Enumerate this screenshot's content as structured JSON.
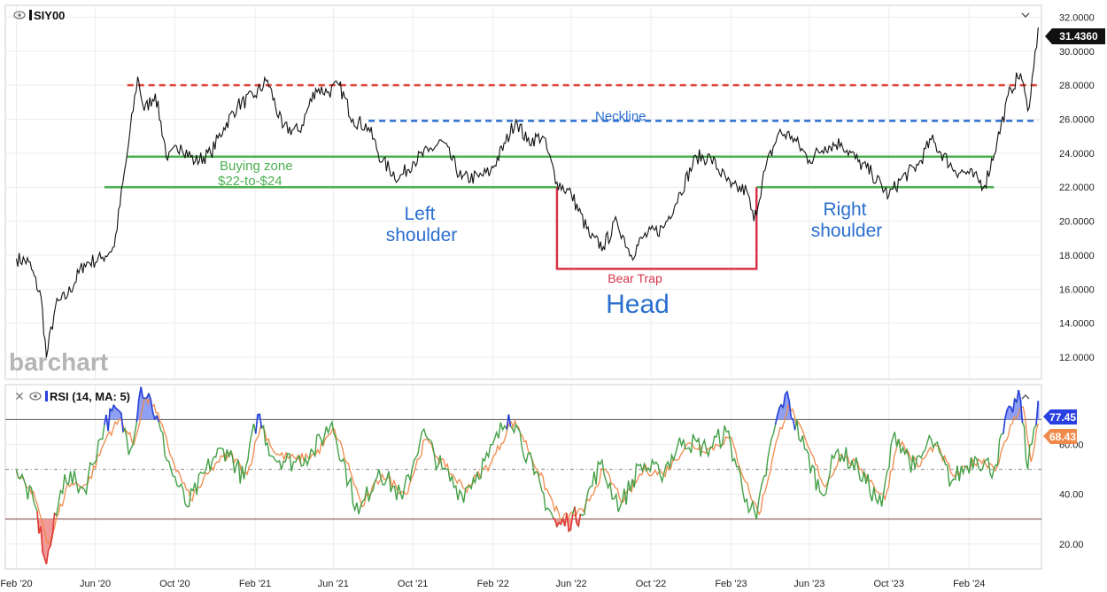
{
  "header": {
    "symbol": "SIY00",
    "rsi_label": "RSI (14, MA: 5)",
    "watermark": "barchart"
  },
  "badges": {
    "last_price": "31.4360",
    "rsi_value": "77.45",
    "rsi_ma_value": "68.43"
  },
  "colors": {
    "price_line": "#111111",
    "resistance": "#e0453a",
    "neckline": "#2b6fcf",
    "support": "#4caf50",
    "bear_trap": "#d6334a",
    "rsi_line": "#43a047",
    "rsi_ma": "#f08a4b",
    "rsi_over": "#2a3fe0",
    "rsi_under": "#e53935",
    "last_price_badge": "#111111",
    "rsi_badge": "#2a3fe0",
    "rsi_ma_badge": "#f08a4b"
  },
  "annotations": {
    "neckline": "Neckline",
    "buying_zone_1": "Buying zone",
    "buying_zone_2": "$22-to-$24",
    "left_shoulder_1": "Left",
    "left_shoulder_2": "shoulder",
    "right_shoulder_1": "Right",
    "right_shoulder_2": "shoulder",
    "bear_trap": "Bear Trap",
    "head": "Head"
  },
  "chart_data": [
    {
      "type": "line",
      "series": [
        {
          "x": [
            "2020-02-01",
            "2020-02-20",
            "2020-03-10",
            "2020-03-18",
            "2020-04-01",
            "2020-04-20",
            "2020-05-15",
            "2020-06-10",
            "2020-06-30",
            "2020-07-20",
            "2020-08-05",
            "2020-08-15",
            "2020-09-01",
            "2020-09-20",
            "2020-10-10",
            "2020-11-01",
            "2020-11-25",
            "2020-12-15",
            "2021-01-05",
            "2021-02-01",
            "2021-02-20",
            "2021-03-15",
            "2021-04-10",
            "2021-05-05",
            "2021-05-25",
            "2021-06-10",
            "2021-07-01",
            "2021-07-25",
            "2021-08-15",
            "2021-09-10",
            "2021-10-01",
            "2021-10-25",
            "2021-11-15",
            "2021-12-15",
            "2022-01-10",
            "2022-01-28",
            "2022-02-20",
            "2022-03-08",
            "2022-03-25",
            "2022-04-18",
            "2022-05-10",
            "2022-06-01",
            "2022-07-01",
            "2022-07-20",
            "2022-08-10",
            "2022-09-01",
            "2022-09-20",
            "2022-10-20",
            "2022-11-15",
            "2022-12-10",
            "2023-01-01",
            "2023-02-01",
            "2023-02-25",
            "2023-03-08",
            "2023-03-25",
            "2023-04-15",
            "2023-05-05",
            "2023-06-01",
            "2023-06-25",
            "2023-07-20",
            "2023-08-15",
            "2023-09-05",
            "2023-10-01",
            "2023-10-20",
            "2023-11-15",
            "2023-12-05",
            "2024-01-10",
            "2024-02-01",
            "2024-02-25",
            "2024-03-15",
            "2024-04-05",
            "2024-04-20",
            "2024-05-01",
            "2024-05-10",
            "2024-05-17"
          ],
          "y": [
            17.8,
            17.6,
            15.5,
            12.0,
            15.0,
            15.7,
            17.5,
            17.8,
            18.5,
            24.0,
            28.5,
            26.5,
            27.5,
            23.6,
            24.5,
            23.5,
            24.0,
            25.5,
            26.8,
            27.4,
            28.3,
            25.5,
            25.3,
            27.8,
            27.6,
            28.0,
            26.0,
            25.5,
            23.5,
            22.5,
            23.5,
            24.1,
            24.7,
            22.5,
            22.6,
            22.9,
            24.6,
            26.0,
            24.7,
            25.0,
            22.3,
            21.6,
            19.0,
            18.5,
            20.0,
            18.0,
            19.1,
            19.6,
            21.7,
            23.8,
            23.7,
            22.0,
            21.8,
            20.0,
            23.0,
            25.2,
            25.0,
            23.6,
            24.4,
            24.6,
            23.5,
            22.8,
            21.5,
            22.5,
            23.3,
            24.8,
            23.0,
            22.8,
            22.1,
            24.7,
            27.8,
            28.7,
            26.5,
            29.0,
            31.4
          ]
        }
      ],
      "ylim": [
        10.7,
        32.7
      ],
      "yticks": [
        "12.0000",
        "14.0000",
        "16.0000",
        "18.0000",
        "20.0000",
        "22.0000",
        "24.0000",
        "26.0000",
        "28.0000",
        "30.0000",
        "32.0000"
      ],
      "levels": {
        "resistance": 28.0,
        "neckline": 25.9,
        "buying_top": 23.8,
        "buying_bottom": 22.0,
        "bear_trap": 17.2
      }
    },
    {
      "type": "line",
      "series": [
        {
          "x": [
            "2020-02-01",
            "2020-03-01",
            "2020-03-18",
            "2020-04-15",
            "2020-05-15",
            "2020-06-15",
            "2020-07-05",
            "2020-07-25",
            "2020-08-10",
            "2020-08-25",
            "2020-09-25",
            "2020-10-20",
            "2020-11-30",
            "2020-12-20",
            "2021-01-15",
            "2021-02-05",
            "2021-03-01",
            "2021-04-01",
            "2021-05-01",
            "2021-05-30",
            "2021-06-25",
            "2021-07-10",
            "2021-08-10",
            "2021-09-15",
            "2021-10-15",
            "2021-11-15",
            "2021-12-15",
            "2022-01-25",
            "2022-02-25",
            "2022-03-08",
            "2022-04-05",
            "2022-05-10",
            "2022-06-15",
            "2022-07-15",
            "2022-08-15",
            "2022-09-15",
            "2022-10-15",
            "2022-11-20",
            "2022-12-25",
            "2023-01-25",
            "2023-02-25",
            "2023-03-12",
            "2023-04-10",
            "2023-04-25",
            "2023-05-25",
            "2023-06-20",
            "2023-07-15",
            "2023-08-15",
            "2023-09-20",
            "2023-10-10",
            "2023-11-10",
            "2023-12-05",
            "2024-01-05",
            "2024-02-10",
            "2024-03-10",
            "2024-04-05",
            "2024-04-20",
            "2024-05-01",
            "2024-05-17"
          ],
          "y": [
            50,
            35,
            12,
            48,
            42,
            68,
            74,
            58,
            83,
            78,
            50,
            35,
            55,
            58,
            46,
            72,
            55,
            53,
            57,
            69,
            45,
            32,
            50,
            38,
            65,
            50,
            40,
            55,
            72,
            68,
            48,
            27,
            32,
            52,
            35,
            52,
            48,
            62,
            58,
            65,
            38,
            30,
            68,
            80,
            58,
            40,
            58,
            50,
            35,
            65,
            50,
            62,
            45,
            55,
            50,
            75,
            78,
            50,
            77.45
          ]
        },
        {
          "x": [
            "2020-02-01",
            "2020-03-01",
            "2020-03-22",
            "2020-04-20",
            "2020-05-20",
            "2020-06-20",
            "2020-07-10",
            "2020-07-30",
            "2020-08-15",
            "2020-08-30",
            "2020-09-30",
            "2020-10-25",
            "2020-12-05",
            "2020-12-25",
            "2021-01-20",
            "2021-02-10",
            "2021-03-05",
            "2021-04-05",
            "2021-05-05",
            "2021-06-03",
            "2021-06-30",
            "2021-07-15",
            "2021-08-15",
            "2021-09-20",
            "2021-10-20",
            "2021-11-20",
            "2021-12-20",
            "2022-01-30",
            "2022-03-01",
            "2022-03-12",
            "2022-04-10",
            "2022-05-15",
            "2022-06-20",
            "2022-07-20",
            "2022-08-20",
            "2022-09-20",
            "2022-10-20",
            "2022-11-25",
            "2022-12-30",
            "2023-01-30",
            "2023-03-01",
            "2023-03-16",
            "2023-04-14",
            "2023-04-30",
            "2023-05-30",
            "2023-06-25",
            "2023-07-20",
            "2023-08-20",
            "2023-09-25",
            "2023-10-15",
            "2023-11-15",
            "2023-12-10",
            "2024-01-10",
            "2024-02-15",
            "2024-03-15",
            "2024-04-10",
            "2024-04-24",
            "2024-05-06",
            "2024-05-17"
          ],
          "y": [
            49,
            38,
            20,
            44,
            44,
            64,
            70,
            60,
            78,
            76,
            52,
            38,
            53,
            56,
            48,
            68,
            56,
            54,
            56,
            66,
            47,
            35,
            48,
            40,
            62,
            51,
            42,
            53,
            69,
            67,
            50,
            30,
            33,
            50,
            37,
            50,
            48,
            60,
            58,
            63,
            41,
            32,
            63,
            76,
            59,
            43,
            56,
            50,
            38,
            62,
            51,
            60,
            47,
            54,
            51,
            71,
            75,
            53,
            68.43
          ]
        }
      ],
      "ylim": [
        10,
        84
      ],
      "yticks": [
        "20.00",
        "40.00",
        "60.00"
      ],
      "levels": {
        "overbought": 70,
        "oversold": 30,
        "midline": 50
      }
    }
  ],
  "x_axis": {
    "ticks": [
      "Feb '20",
      "Jun '20",
      "Oct '20",
      "Feb '21",
      "Jun '21",
      "Oct '21",
      "Feb '22",
      "Jun '22",
      "Oct '22",
      "Feb '23",
      "Jun '23",
      "Oct '23",
      "Feb '24"
    ],
    "tick_dates": [
      "2020-02-01",
      "2020-06-01",
      "2020-10-01",
      "2021-02-01",
      "2021-06-01",
      "2021-10-01",
      "2022-02-01",
      "2022-06-01",
      "2022-10-01",
      "2023-02-01",
      "2023-06-01",
      "2023-10-01",
      "2024-02-01"
    ]
  }
}
